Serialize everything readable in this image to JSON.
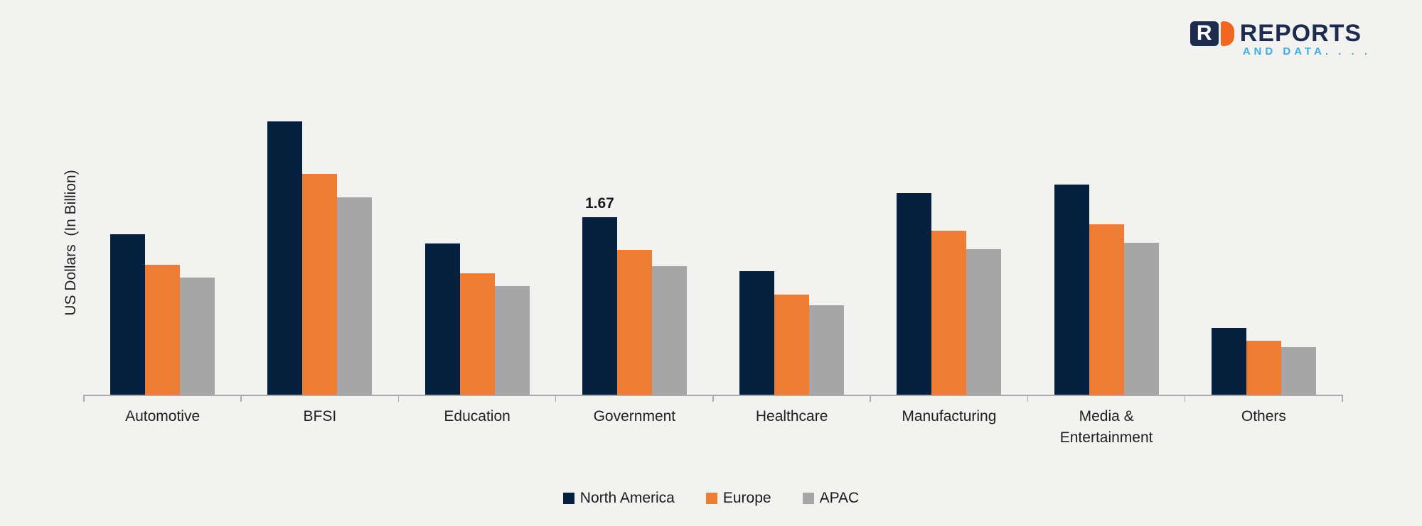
{
  "logo": {
    "mark_letter": "R",
    "line1": "REPORTS",
    "line2": "AND DATA. . . .",
    "navy": "#1d2b4f",
    "blue": "#3caee4",
    "orange": "#f26622"
  },
  "chart_data": {
    "type": "bar",
    "title": "",
    "xlabel": "",
    "ylabel": "US Dollars  (In Billion)",
    "categories": [
      "Automotive",
      "BFSI",
      "Education",
      "Government",
      "Healthcare",
      "Manufacturing",
      "Media & Entertainment",
      "Others"
    ],
    "series": [
      {
        "name": "North America",
        "color": "#06213f",
        "values": [
          1.51,
          2.57,
          1.42,
          1.67,
          1.16,
          1.9,
          1.98,
          0.63
        ]
      },
      {
        "name": "Europe",
        "color": "#ee7d33",
        "values": [
          1.22,
          2.08,
          1.14,
          1.36,
          0.94,
          1.54,
          1.6,
          0.51
        ]
      },
      {
        "name": "APAC",
        "color": "#a6a6a6",
        "values": [
          1.1,
          1.86,
          1.02,
          1.21,
          0.84,
          1.37,
          1.43,
          0.45
        ]
      }
    ],
    "data_labels": [
      {
        "category": "Government",
        "series": "North America",
        "text": "1.67"
      }
    ],
    "ylim": [
      0,
      3.07
    ],
    "grid": false,
    "legend_position": "bottom",
    "axis_color": "#ababab",
    "background": "#f2f2f1"
  }
}
